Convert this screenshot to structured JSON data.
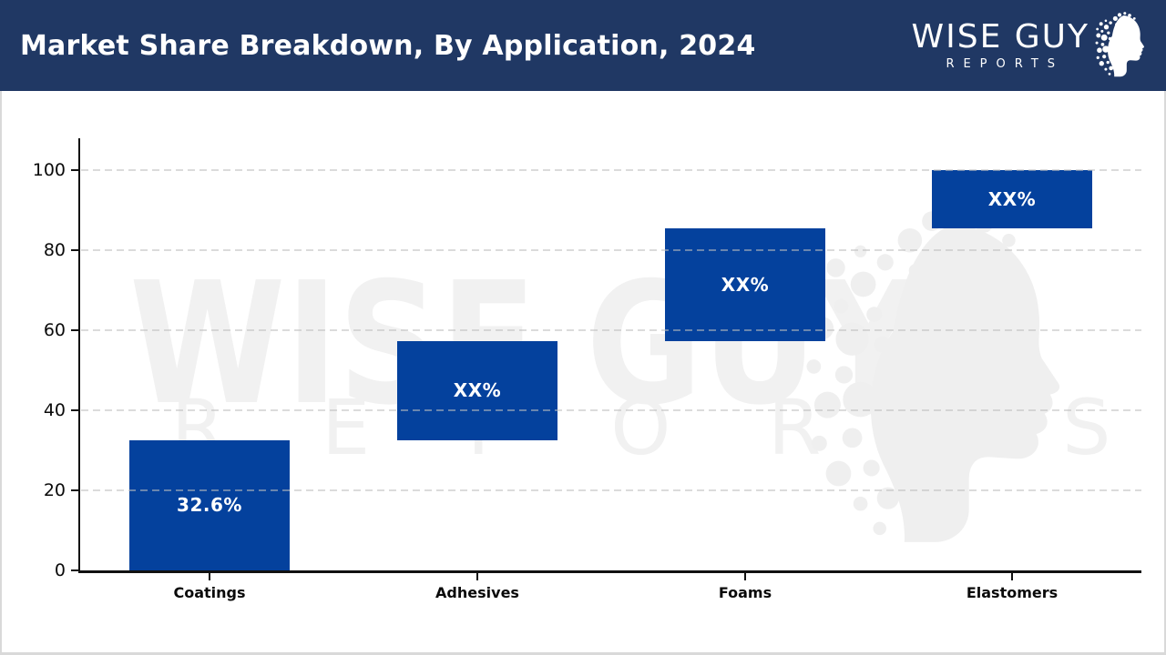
{
  "header": {
    "title": "Market Share Breakdown, By Application, 2024",
    "background_color": "#203864",
    "logo": {
      "brand_line1": "WISE GUY",
      "brand_line2": "REPORTS",
      "icon": "dotted-face-profile-icon"
    }
  },
  "watermark": {
    "line1": "WISE GUY",
    "line2": "R E P O R T S",
    "icon": "dotted-face-profile-icon"
  },
  "chart_data": {
    "type": "bar",
    "subtype": "floating-waterfall",
    "title": "Market Share Breakdown, By Application, 2024",
    "categories": [
      "Coatings",
      "Adhesives",
      "Foams",
      "Elastomers"
    ],
    "segments": [
      {
        "category": "Coatings",
        "start": 0,
        "end": 32.6,
        "label": "32.6%",
        "value_shown": true
      },
      {
        "category": "Adhesives",
        "start": 32.6,
        "end": 57.2,
        "label": "XX%",
        "value_shown": false
      },
      {
        "category": "Foams",
        "start": 57.2,
        "end": 85.5,
        "label": "XX%",
        "value_shown": false
      },
      {
        "category": "Elastomers",
        "start": 85.5,
        "end": 100,
        "label": "XX%",
        "value_shown": false
      }
    ],
    "yticks": [
      0,
      20,
      40,
      60,
      80,
      100
    ],
    "ylim": [
      0,
      107
    ],
    "xlabel": "",
    "ylabel": "",
    "grid": "horizontal-dashed-drawn-over-bars",
    "legend_position": "none",
    "colors": {
      "bar": "#04419d",
      "grid": "#bebebe",
      "axis": "#111111",
      "bar_label": "#ffffff",
      "header": "#203864",
      "watermark": "#f1f1f1"
    }
  }
}
